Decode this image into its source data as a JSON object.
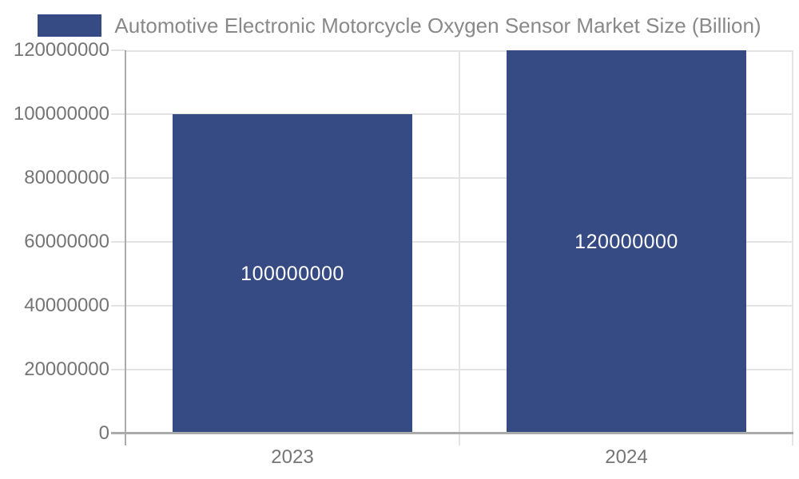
{
  "legend": {
    "label": "Automotive Electronic Motorcycle Oxygen Sensor Market Size (Billion)"
  },
  "chart_data": {
    "type": "bar",
    "categories": [
      "2023",
      "2024"
    ],
    "series": [
      {
        "name": "Automotive Electronic Motorcycle Oxygen Sensor Market Size (Billion)",
        "values": [
          100000000,
          120000000
        ],
        "color": "#364A83"
      }
    ],
    "bar_value_labels": [
      "100000000",
      "120000000"
    ],
    "y_tick_labels": [
      "0",
      "20000000",
      "40000000",
      "60000000",
      "80000000",
      "100000000",
      "120000000"
    ],
    "y_ticks": [
      0,
      20000000,
      40000000,
      60000000,
      80000000,
      100000000,
      120000000
    ],
    "ylim": [
      0,
      120000000
    ],
    "grid": true,
    "legend_position": "top",
    "title": "",
    "xlabel": "",
    "ylabel": ""
  },
  "colors": {
    "bar": "#364A83",
    "grid": "#E3E3E3",
    "axis": "#ABABAB",
    "tick_label": "#757575",
    "legend_text": "#898989",
    "bar_label": "#FFFFFF",
    "background": "#FFFFFF"
  }
}
